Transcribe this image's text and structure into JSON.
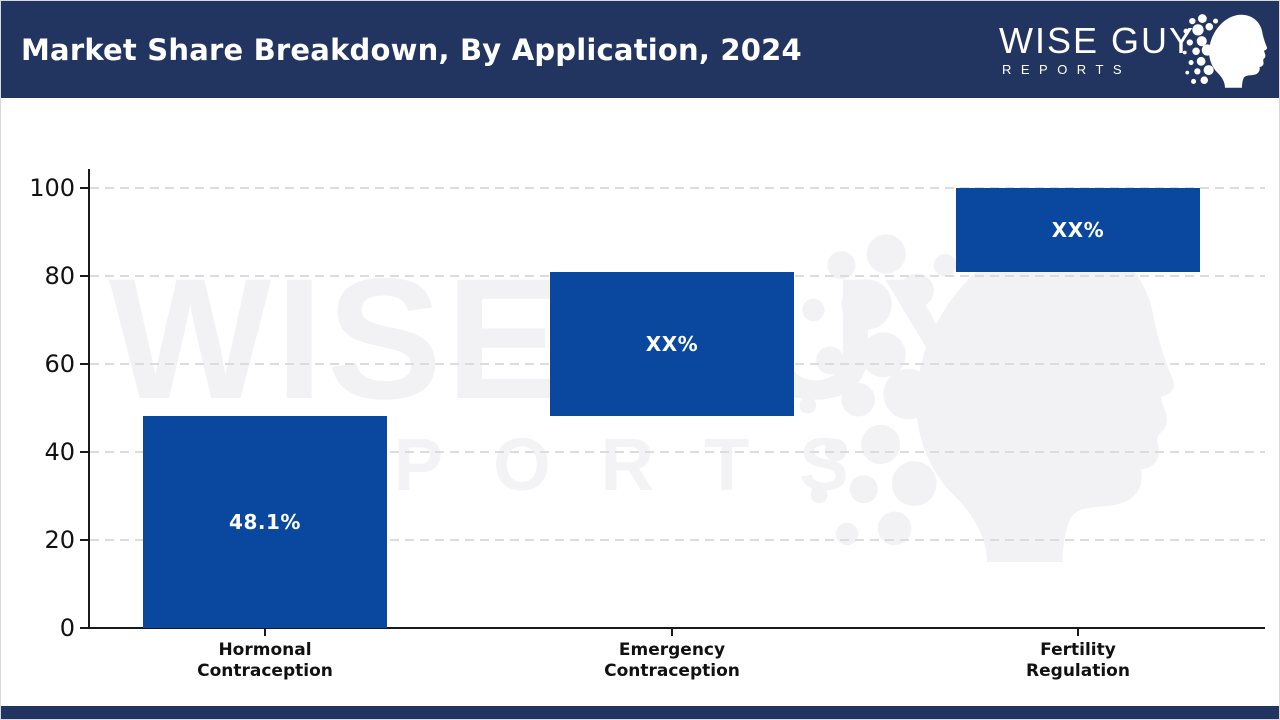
{
  "header": {
    "title": "Market Share Breakdown, By Application, 2024",
    "logo": {
      "line1": "WISE GUY",
      "line2": "REPORTS"
    },
    "bg_color": "#223560"
  },
  "watermark": {
    "line1": "WISE GUY",
    "line2": "REPORTS",
    "color": "#f2f2f4"
  },
  "chart_data": {
    "type": "bar",
    "subtype": "floating-breakdown-waterfall",
    "title": "Market Share Breakdown, By Application, 2024",
    "categories": [
      [
        "Hormonal",
        "Contraception"
      ],
      [
        "Emergency",
        "Contraception"
      ],
      [
        "Fertility",
        "Regulation"
      ]
    ],
    "segments": [
      {
        "start": 0,
        "end": 48.1,
        "label": "48.1%"
      },
      {
        "start": 48.1,
        "end": 81,
        "label": "XX%"
      },
      {
        "start": 81,
        "end": 100,
        "label": "XX%"
      }
    ],
    "yticks": [
      0,
      20,
      40,
      60,
      80,
      100
    ],
    "ylim": [
      0,
      100
    ],
    "xlabel": "",
    "ylabel": "",
    "grid": true,
    "legend": "none",
    "bar_color": "#09489e",
    "bar_label_color": "#ffffff",
    "grid_color": "#dcdcdc",
    "axis_color": "#1a1a1a",
    "tick_label_color": "#111111"
  }
}
